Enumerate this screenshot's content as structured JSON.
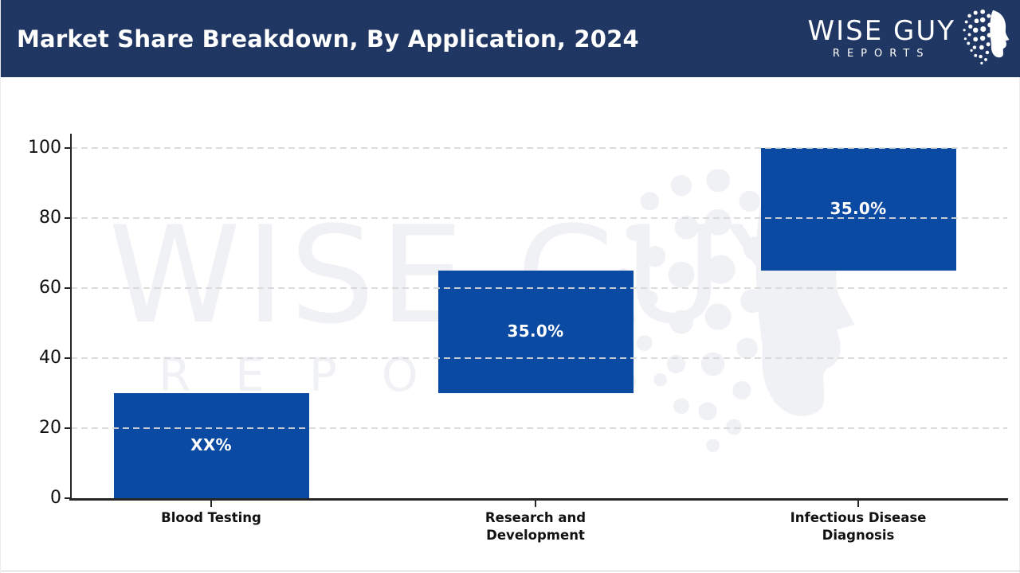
{
  "header": {
    "title": "Market Share Breakdown, By Application, 2024",
    "logo": {
      "line1": "WISE GUY",
      "line2": "REPORTS"
    }
  },
  "watermark": {
    "line1": "WISE GUY",
    "line2": "REPORTS"
  },
  "colors": {
    "header_bg": "#203764",
    "title_text": "#ffffff",
    "bar": "#0b4aa2",
    "bar_label": "#ffffff",
    "axis": "#262626",
    "tick_text": "#111111",
    "grid": "#d8d8d8",
    "watermark": "#f0f1f4",
    "hairline": "#cccccc"
  },
  "chart_data": {
    "type": "bar",
    "subtype": "waterfall",
    "title": "Market Share Breakdown, By Application, 2024",
    "categories": [
      "Blood Testing",
      "Research and\nDevelopment",
      "Infectious Disease\nDiagnosis"
    ],
    "series": [
      {
        "name": "Market Share",
        "starts": [
          0,
          30,
          65
        ],
        "ends": [
          30,
          65,
          100
        ],
        "labels": [
          "XX%",
          "35.0%",
          "35.0%"
        ]
      }
    ],
    "values": [
      30,
      35,
      35
    ],
    "xlabel": "",
    "ylabel": "",
    "ylim": [
      0,
      100
    ],
    "yticks": [
      0,
      20,
      40,
      60,
      80,
      100
    ],
    "grid": "horizontal-dashed",
    "legend": "none"
  }
}
